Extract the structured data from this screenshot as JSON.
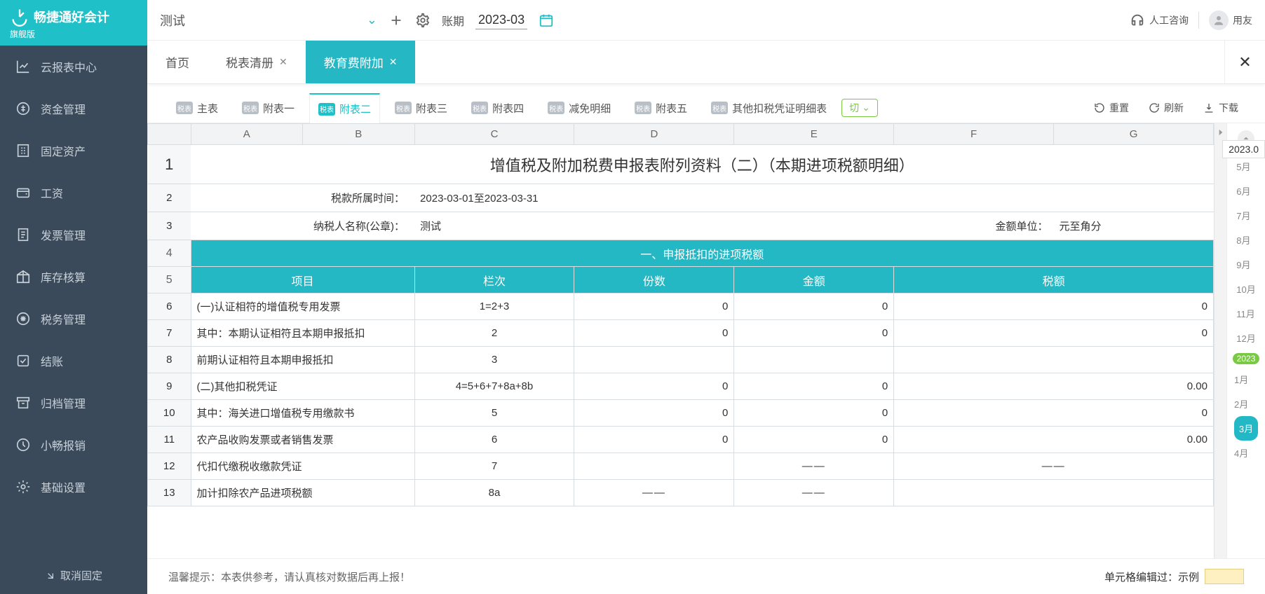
{
  "brand": {
    "name": "畅捷通好会计",
    "edition": "旗舰版"
  },
  "topbar": {
    "company": "测试",
    "period_label": "账期",
    "period": "2023-03",
    "support": "人工咨询",
    "user": "用友"
  },
  "tabs": [
    {
      "label": "首页",
      "closable": false,
      "active": false
    },
    {
      "label": "税表清册",
      "closable": true,
      "active": false
    },
    {
      "label": "教育费附加",
      "closable": true,
      "active": true
    }
  ],
  "subtabs": [
    {
      "label": "主表",
      "active": false
    },
    {
      "label": "附表一",
      "active": false
    },
    {
      "label": "附表二",
      "active": true
    },
    {
      "label": "附表三",
      "active": false
    },
    {
      "label": "附表四",
      "active": false
    },
    {
      "label": "减免明细",
      "active": false
    },
    {
      "label": "附表五",
      "active": false
    },
    {
      "label": "其他扣税凭证明细表",
      "active": false
    }
  ],
  "sub_pill": "切",
  "sub_actions": {
    "reset": "重置",
    "refresh": "刷新",
    "download": "下载"
  },
  "nav": [
    {
      "label": "云报表中心",
      "icon": "report"
    },
    {
      "label": "资金管理",
      "icon": "money"
    },
    {
      "label": "固定资产",
      "icon": "building"
    },
    {
      "label": "工资",
      "icon": "wallet"
    },
    {
      "label": "发票管理",
      "icon": "invoice"
    },
    {
      "label": "库存核算",
      "icon": "stock"
    },
    {
      "label": "税务管理",
      "icon": "tax"
    },
    {
      "label": "结账",
      "icon": "close"
    },
    {
      "label": "归档管理",
      "icon": "archive"
    },
    {
      "label": "小畅报销",
      "icon": "expense"
    },
    {
      "label": "基础设置",
      "icon": "settings"
    }
  ],
  "side_foot": "取消固定",
  "cols": [
    "A",
    "B",
    "C",
    "D",
    "E",
    "F",
    "G"
  ],
  "widths": [
    140,
    140,
    200,
    200,
    200,
    200,
    200
  ],
  "sheet": {
    "title": "增值税及附加税费申报表附列资料（二）（本期进项税额明细）",
    "period_label": "税款所属时间：",
    "period_value": "2023-03-01至2023-03-31",
    "taxpayer_label": "纳税人名称(公章)：",
    "taxpayer_value": "测试",
    "unit_label": "金额单位：",
    "unit_value": "元至角分",
    "section_title": "一、申报抵扣的进项税额",
    "headers": [
      "项目",
      "栏次",
      "份数",
      "金额",
      "税额"
    ],
    "rows": [
      {
        "n": 6,
        "item": "(一)认证相符的增值税专用发票",
        "lan": "1=2+3",
        "fen": "0",
        "jin": "0",
        "shui": "0"
      },
      {
        "n": 7,
        "item": "其中：本期认证相符且本期申报抵扣",
        "lan": "2",
        "fen": "0",
        "jin": "0",
        "shui": "0"
      },
      {
        "n": 8,
        "item": "前期认证相符且本期申报抵扣",
        "lan": "3",
        "fen": "",
        "jin": "",
        "shui": ""
      },
      {
        "n": 9,
        "item": "(二)其他扣税凭证",
        "lan": "4=5+6+7+8a+8b",
        "fen": "0",
        "jin": "0",
        "shui": "0.00"
      },
      {
        "n": 10,
        "item": "其中：海关进口增值税专用缴款书",
        "lan": "5",
        "fen": "0",
        "jin": "0",
        "shui": "0"
      },
      {
        "n": 11,
        "item": "农产品收购发票或者销售发票",
        "lan": "6",
        "fen": "0",
        "jin": "0",
        "shui": "0.00"
      },
      {
        "n": 12,
        "item": "代扣代缴税收缴款凭证",
        "lan": "7",
        "fen": "",
        "jin": "——",
        "shui": "——"
      },
      {
        "n": 13,
        "item": "加计扣除农产品进项税额",
        "lan": "8a",
        "fen": "——",
        "jin": "——",
        "shui": ""
      }
    ]
  },
  "foot": {
    "hint": "温馨提示：本表供参考，请认真核对数据后再上报！",
    "cell_label": "单元格编辑过：",
    "example": "示例"
  },
  "timeline": {
    "year_float": "2023.0",
    "months_top": [
      "5月",
      "6月",
      "7月",
      "8月",
      "9月",
      "10月",
      "11月",
      "12月"
    ],
    "year_chip": "2023",
    "months_bottom": [
      "1月",
      "2月",
      "3月",
      "4月"
    ],
    "current": "3月"
  },
  "colors": {
    "accent": "#1fc0c7",
    "section": "#24b7c4",
    "sidebar": "#3a4a5a"
  }
}
